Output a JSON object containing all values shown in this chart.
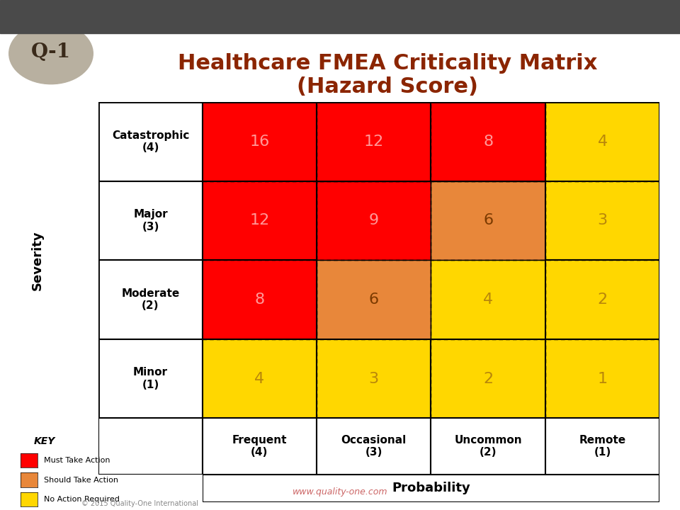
{
  "title_line1": "Healthcare FMEA Criticality Matrix",
  "title_line2": "(Hazard Score)",
  "title_color": "#8B2500",
  "background_color": "#FFFFFF",
  "header_bg": "#4A4A4A",
  "matrix": [
    [
      16,
      12,
      8,
      4
    ],
    [
      12,
      9,
      6,
      3
    ],
    [
      8,
      6,
      4,
      2
    ],
    [
      4,
      3,
      2,
      1
    ]
  ],
  "cell_colors": [
    [
      "#FF0000",
      "#FF0000",
      "#FF0000",
      "#FFD700"
    ],
    [
      "#FF0000",
      "#FF0000",
      "#E8873A",
      "#FFD700"
    ],
    [
      "#FF0000",
      "#E8873A",
      "#FFD700",
      "#FFD700"
    ],
    [
      "#FFD700",
      "#FFD700",
      "#FFD700",
      "#FFD700"
    ]
  ],
  "row_labels": [
    "Catastrophic\n(4)",
    "Major\n(3)",
    "Moderate\n(2)",
    "Minor\n(1)"
  ],
  "col_labels": [
    "Frequent\n(4)",
    "Occasional\n(3)",
    "Uncommon\n(2)",
    "Remote\n(1)"
  ],
  "severity_label": "Severity",
  "probability_label": "Probability",
  "key_title": "KEY",
  "key_items": [
    {
      "color": "#FF0000",
      "label": "Must Take Action"
    },
    {
      "color": "#E8873A",
      "label": "Should Take Action"
    },
    {
      "color": "#FFD700",
      "label": "No Action Required"
    }
  ],
  "number_color_red": "#FF6B6B",
  "number_color_orange": "#CD6600",
  "number_color_yellow": "#B8860B",
  "watermark": "www.quality-one.com",
  "copyright": "© 2015 Quality-One International"
}
